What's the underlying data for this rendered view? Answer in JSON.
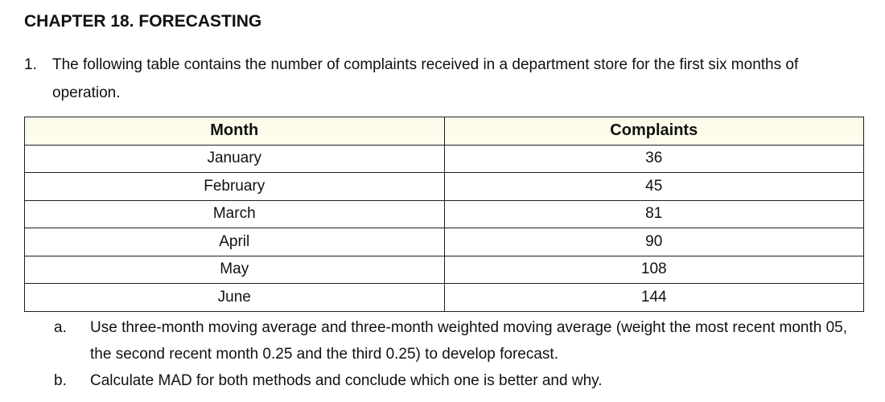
{
  "title": "CHAPTER 18. FORECASTING",
  "question": {
    "number": "1.",
    "text": "The following table contains the number of complaints received in a department store for the first six months of operation."
  },
  "table": {
    "headers": [
      "Month",
      "Complaints"
    ],
    "header_bg": "#fdfceb",
    "border_color": "#1f1f1f",
    "rows": [
      [
        "January",
        "36"
      ],
      [
        "February",
        "45"
      ],
      [
        "March",
        "81"
      ],
      [
        "April",
        "90"
      ],
      [
        "May",
        "108"
      ],
      [
        "June",
        "144"
      ]
    ]
  },
  "subquestions": [
    {
      "label": "a.",
      "text": "Use three-month moving average and three-month weighted moving average (weight the most recent month 05, the second recent month 0.25 and the third 0.25) to develop forecast."
    },
    {
      "label": "b.",
      "text": "Calculate MAD for both methods and conclude which one is better and why."
    }
  ]
}
